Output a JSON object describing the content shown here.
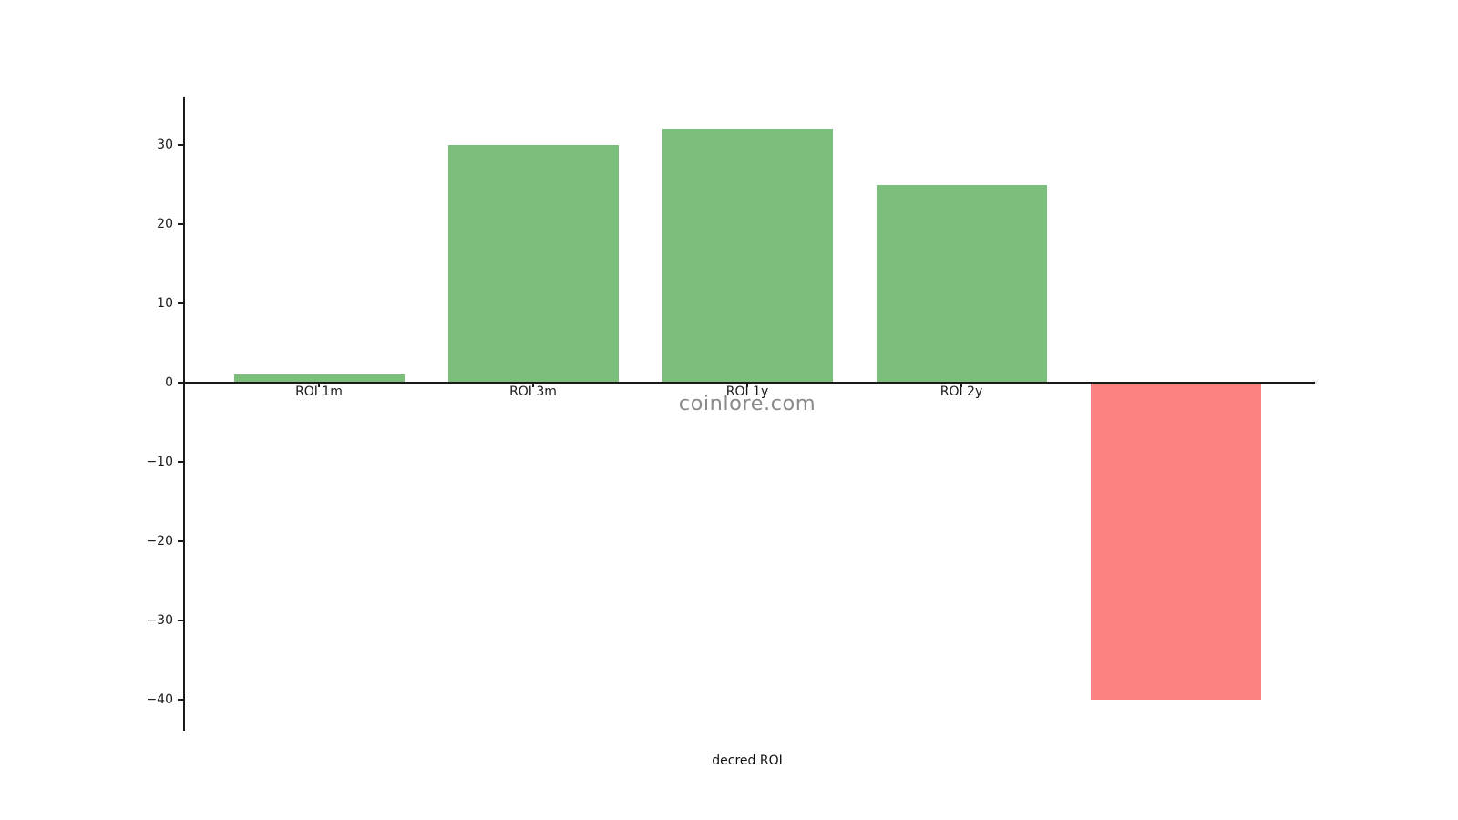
{
  "watermark": {
    "text": "coinlore.com",
    "color": "#8a8a8a"
  },
  "icons": {
    "axis_end_marker": "×"
  },
  "chart_data": {
    "type": "bar",
    "title": "",
    "xlabel": "decred ROI",
    "ylabel": "",
    "categories": [
      "ROI 1m",
      "ROI 3m",
      "ROI 1y",
      "ROI 2y",
      ""
    ],
    "values": [
      1,
      30,
      32,
      25,
      -40
    ],
    "series": [
      {
        "name": "decred ROI",
        "values": [
          1,
          30,
          32,
          25,
          -40
        ]
      }
    ],
    "colors": {
      "positive": "#7cbf7c",
      "negative": "#fc8181"
    },
    "yticks": [
      30,
      20,
      10,
      0,
      -10,
      -20,
      -30,
      -40
    ],
    "ylim": [
      -43.5,
      36
    ],
    "grid": false,
    "legend_position": "none",
    "background": "#ffffff"
  }
}
